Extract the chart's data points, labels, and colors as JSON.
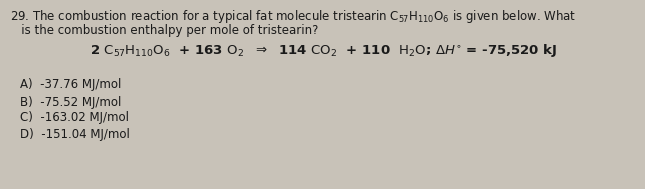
{
  "background_color": "#c8c2b8",
  "text_color": "#1a1a1a",
  "line1": "29. The combustion reaction for a typical fat molecule tristearin C",
  "line1_formula": "57",
  "line1_mid": "H",
  "line1_sub2": "110",
  "line1_mid2": "O",
  "line1_sub3": "6",
  "line1_end": " is given below. What",
  "line2": "   is the combustion enthalpy per mole of tristearin?",
  "equation_prefix": "2 C",
  "equation_text": "57",
  "eq_mid": "H",
  "eq_sub2": "110",
  "eq_mid2": "O",
  "eq_sub3": "6",
  "eq_rest": "  + 163 O₂  =>  114 CO₂  + 110  H₂O; ΔH° = -75,520 kJ",
  "choices": [
    "A)  -37.76 MJ/mol",
    "B)  -75.52 MJ/mol",
    "C)  -163.02 MJ/mol",
    "D)  -151.04 MJ/mol"
  ],
  "fs_question": 8.5,
  "fs_equation": 9.5,
  "fs_choices": 8.5,
  "fig_width": 6.45,
  "fig_height": 1.89,
  "dpi": 100
}
